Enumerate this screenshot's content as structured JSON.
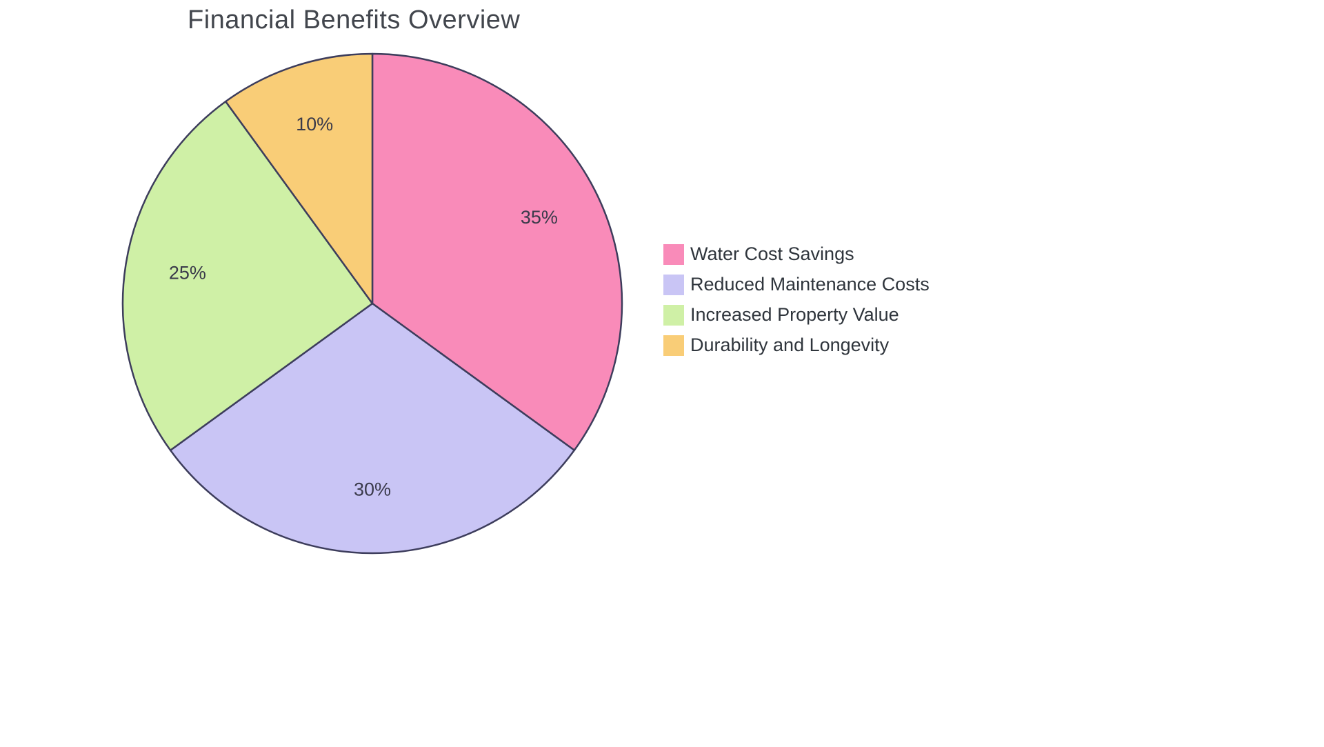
{
  "chart_data": {
    "type": "pie",
    "title": "Financial Benefits Overview",
    "start_angle_deg": 0,
    "direction": "clockwise",
    "legend_position": "right",
    "stroke_color": "#3d3d5c",
    "label_color": "#3a3a4a",
    "background_color": "#ffffff",
    "slices": [
      {
        "label": "Water Cost Savings",
        "value": 35,
        "pct_label": "35%",
        "color": "#f98bb9"
      },
      {
        "label": "Reduced Maintenance Costs",
        "value": 30,
        "pct_label": "30%",
        "color": "#c9c5f5"
      },
      {
        "label": "Increased Property Value",
        "value": 25,
        "pct_label": "25%",
        "color": "#cff0a6"
      },
      {
        "label": "Durability and Longevity",
        "value": 10,
        "pct_label": "10%",
        "color": "#f9cd77"
      }
    ]
  }
}
